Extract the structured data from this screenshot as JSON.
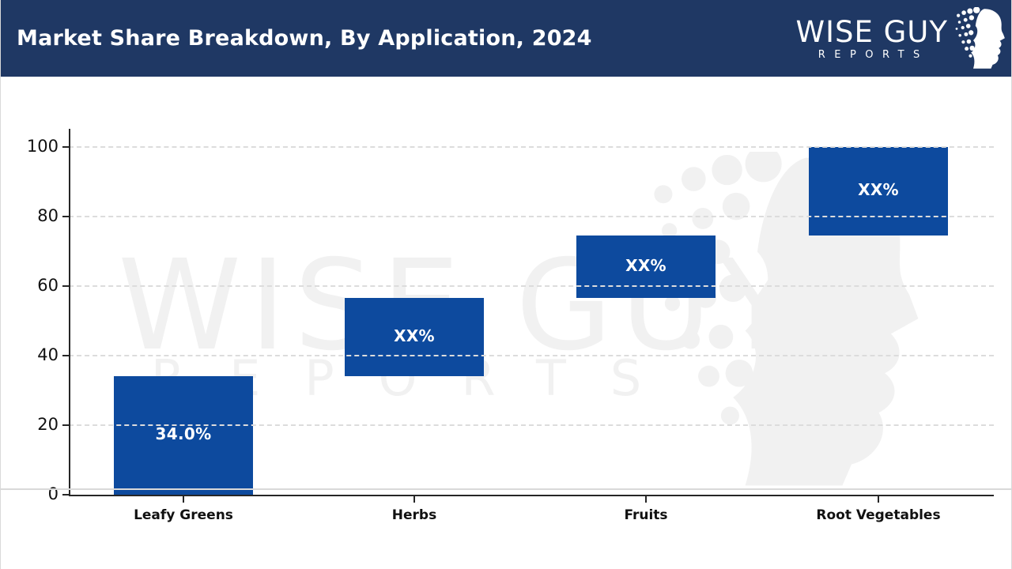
{
  "header": {
    "title": "Market Share Breakdown, By Application, 2024",
    "logo": {
      "name": "WISE GUY",
      "tagline": "REPORTS"
    }
  },
  "watermark": {
    "name": "WISE GUY",
    "tagline": "REPORTS"
  },
  "chart_data": {
    "type": "bar",
    "subtype": "waterfall",
    "title": "Market Share Breakdown, By Application, 2024",
    "unit": "%",
    "categories": [
      "Leafy Greens",
      "Herbs",
      "Fruits",
      "Root Vegetables"
    ],
    "segments": [
      {
        "category": "Leafy Greens",
        "start": 0,
        "end": 34,
        "label": "34.0%"
      },
      {
        "category": "Herbs",
        "start": 34,
        "end": 56.5,
        "label": "XX%"
      },
      {
        "category": "Fruits",
        "start": 56.5,
        "end": 74.5,
        "label": "XX%"
      },
      {
        "category": "Root Vegetables",
        "start": 74.5,
        "end": 100,
        "label": "XX%"
      }
    ],
    "ylim": [
      0,
      100
    ],
    "yticks": [
      0,
      20,
      40,
      60,
      80,
      100
    ],
    "grid": "horizontal-dashed",
    "legend": "none",
    "colors": {
      "bar": "#0d4a9e",
      "header": "#1f3864",
      "grid": "#dcdcdc",
      "axis": "#262626",
      "watermark": "#f1f1f1"
    }
  }
}
